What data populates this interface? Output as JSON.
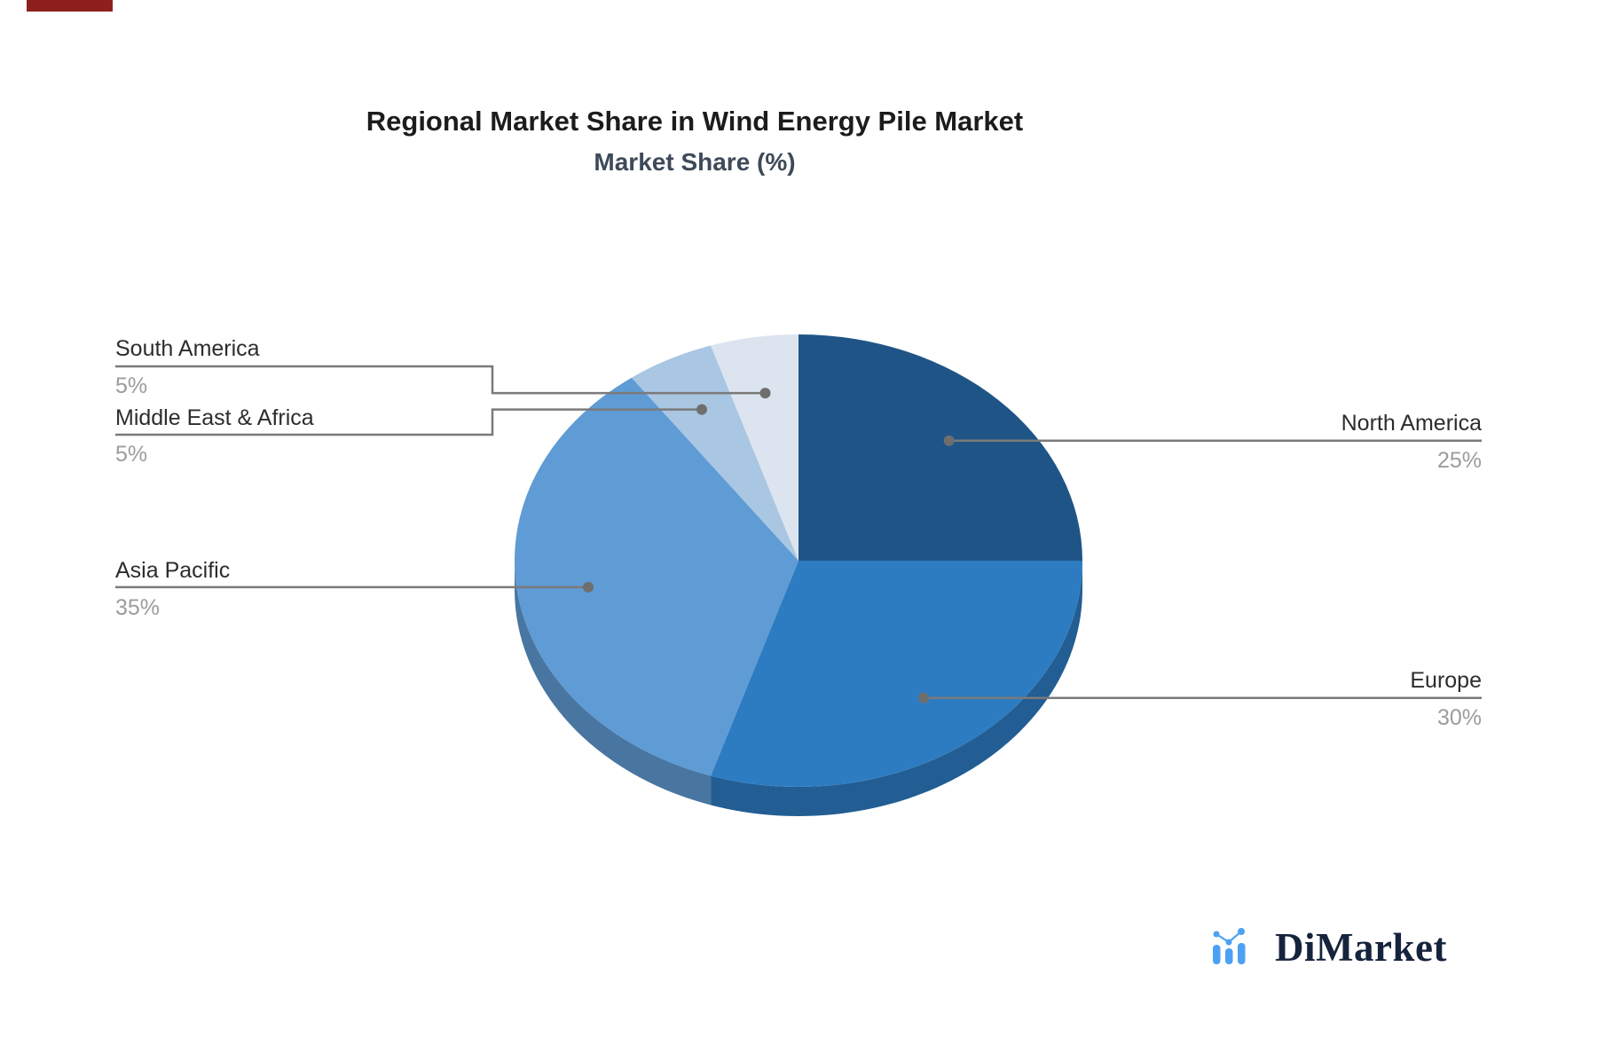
{
  "page": {
    "background": "#ffffff",
    "top_strip_color": "#8e1f1f"
  },
  "chart_data": {
    "type": "pie",
    "style": "3d",
    "title": "Regional Market Share in Wind Energy Pile Market",
    "subtitle": "Market Share (%)",
    "unit": "%",
    "direction": "clockwise",
    "start_angle_deg": 0,
    "legend_position": "callout-labels",
    "slices": [
      {
        "label": "North America",
        "value": 25,
        "value_label": "25%",
        "color": "#1f5586"
      },
      {
        "label": "Europe",
        "value": 30,
        "value_label": "30%",
        "color": "#2d7cc2"
      },
      {
        "label": "Asia Pacific",
        "value": 35,
        "value_label": "35%",
        "color": "#5f9bd4"
      },
      {
        "label": "Middle East & Africa",
        "value": 5,
        "value_label": "5%",
        "color": "#a9c6e2"
      },
      {
        "label": "South America",
        "value": 5,
        "value_label": "5%",
        "color": "#dce4ef"
      }
    ],
    "leader_line_color": "#7a7a7a",
    "leader_dot_color": "#6e6e6e",
    "label_color": "#2d2d2d",
    "value_color": "#9c9c9c"
  },
  "branding": {
    "logo_text": "DiMarket",
    "logo_text_color": "#16233c",
    "icon_color": "#4da1f2"
  }
}
